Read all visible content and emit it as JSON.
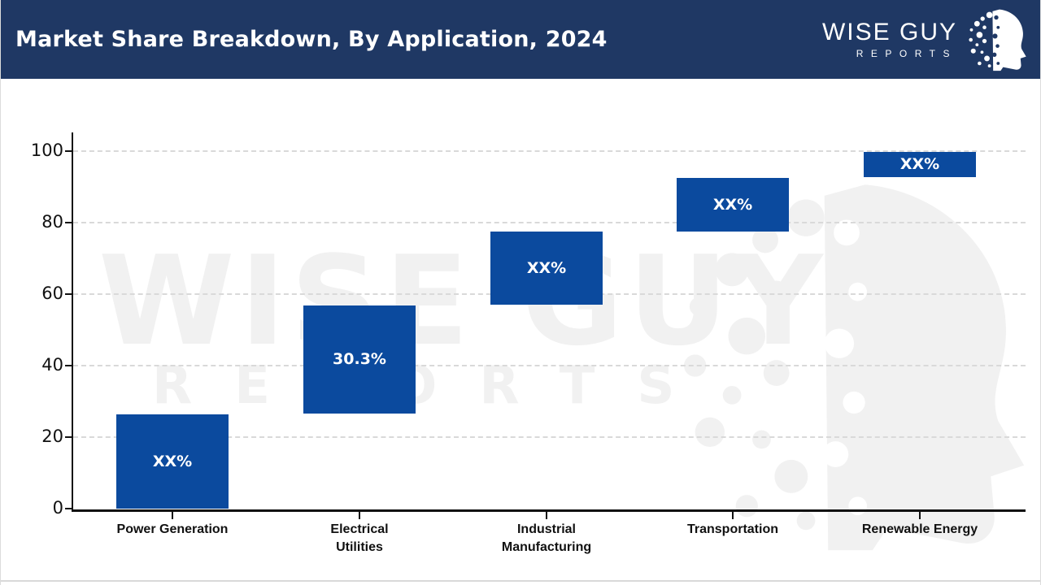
{
  "header": {
    "title": "Market Share Breakdown, By Application, 2024",
    "bg_color": "#1f3864",
    "brand": {
      "line1": "WISE GUY",
      "line2": "REPORTS"
    }
  },
  "chart_data": {
    "type": "bar",
    "subtype": "waterfall",
    "title": "Market Share Breakdown, By Application, 2024",
    "categories": [
      "Power Generation",
      "Electrical Utilities",
      "Industrial Manufacturing",
      "Transportation",
      "Renewable Energy"
    ],
    "category_label_lines": [
      [
        "Power Generation"
      ],
      [
        "Electrical",
        "Utilities"
      ],
      [
        "Industrial",
        "Manufacturing"
      ],
      [
        "Transportation"
      ],
      [
        "Renewable Energy"
      ]
    ],
    "series": [
      {
        "name": "Market Share %",
        "segments": [
          {
            "category": "Power Generation",
            "from": 0,
            "to": 26.4,
            "label": "XX%"
          },
          {
            "category": "Electrical Utilities",
            "from": 26.6,
            "to": 56.9,
            "label": "30.3%"
          },
          {
            "category": "Industrial Manufacturing",
            "from": 57.1,
            "to": 77.4,
            "label": "XX%"
          },
          {
            "category": "Transportation",
            "from": 77.5,
            "to": 92.4,
            "label": "XX%"
          },
          {
            "category": "Renewable Energy",
            "from": 92.7,
            "to": 99.8,
            "label": "XX%"
          }
        ]
      }
    ],
    "xlabel": "",
    "ylabel": "",
    "yticks": [
      0,
      20,
      40,
      60,
      80,
      100
    ],
    "ylim": [
      0,
      105
    ],
    "grid": "horizontal-dashed",
    "legend": "none",
    "bar_color": "#0b4a9e",
    "bar_label_color": "#ffffff",
    "watermark": {
      "line1": "WISE GUY",
      "line2": "REPORTS"
    }
  }
}
